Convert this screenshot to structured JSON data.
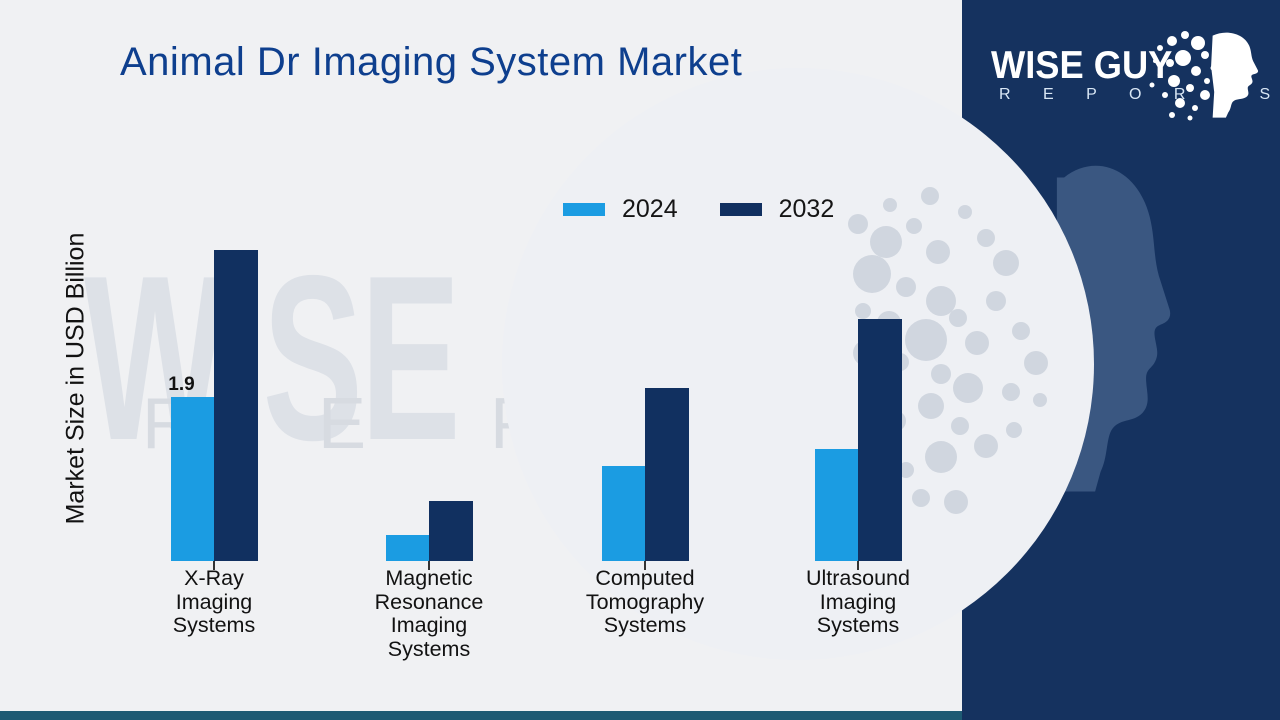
{
  "title": {
    "text": "Animal Dr Imaging System Market",
    "color": "#0e3f8e"
  },
  "watermark": {
    "line1": "WISE GUY",
    "line2": "R E P O R T S"
  },
  "brand": {
    "name": "WISE GUY",
    "sub": "R E P O R T S",
    "panel_color": "#15325f",
    "head_icon": "head-profile-icon"
  },
  "colors": {
    "background": "#f0f1f3",
    "series_2024": "#1b9ce2",
    "series_2032": "#113060",
    "panel_navy": "#15325f",
    "faint_head_navy": "#3a5781",
    "bottom_strip_teal": "#1e5a73",
    "watermark_gray": "#dde1e7"
  },
  "chart_data": {
    "type": "bar",
    "title": "Animal Dr Imaging System Market",
    "ylabel": "Market Size in USD Billion",
    "xlabel": "",
    "ylim": [
      0,
      4
    ],
    "grid": false,
    "legend_position": "top-center",
    "categories": [
      "X-Ray Imaging Systems",
      "Magnetic Resonance Imaging Systems",
      "Computed Tomography Systems",
      "Ultrasound Imaging Systems"
    ],
    "category_label_lines": [
      [
        "X-Ray",
        "Imaging",
        "Systems"
      ],
      [
        "Magnetic",
        "Resonance",
        "Imaging",
        "Systems"
      ],
      [
        "Computed",
        "Tomography",
        "Systems"
      ],
      [
        "Ultrasound",
        "Imaging",
        "Systems"
      ]
    ],
    "series": [
      {
        "name": "2024",
        "color": "#1b9ce2",
        "values": [
          1.9,
          0.3,
          1.1,
          1.3
        ]
      },
      {
        "name": "2032",
        "color": "#113060",
        "values": [
          3.6,
          0.7,
          2.0,
          2.8
        ]
      }
    ],
    "annotations": [
      {
        "text": "1.9",
        "series_index": 0,
        "category_index": 0
      }
    ]
  }
}
